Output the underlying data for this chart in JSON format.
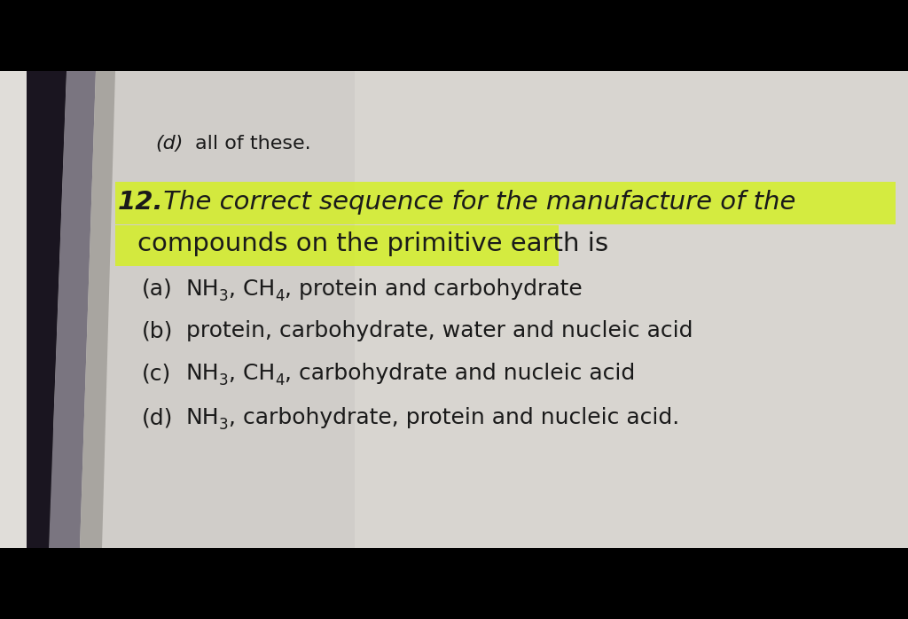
{
  "background_outer": "#000000",
  "page_color": "#c8c5c0",
  "spine_dark": "#2a2630",
  "spine_mid": "#6b6570",
  "highlight_color": "#d4f020",
  "text_color": "#1a1a1a",
  "figsize": [
    10.24,
    6.98
  ],
  "dpi": 100,
  "prev_label": "(d)",
  "prev_text": "all of these.",
  "q_number": "12.",
  "q_line1": " The correct sequence for the manufacture of the",
  "q_line2": "compounds on the primitive earth is",
  "opt_a_text": ", protein and carbohydrate",
  "opt_b_text": "protein, carbohydrate, water and nucleic acid",
  "opt_c_text": ", carbohydrate and nucleic acid",
  "opt_d_text": ", carbohydrate, protein and nucleic acid."
}
